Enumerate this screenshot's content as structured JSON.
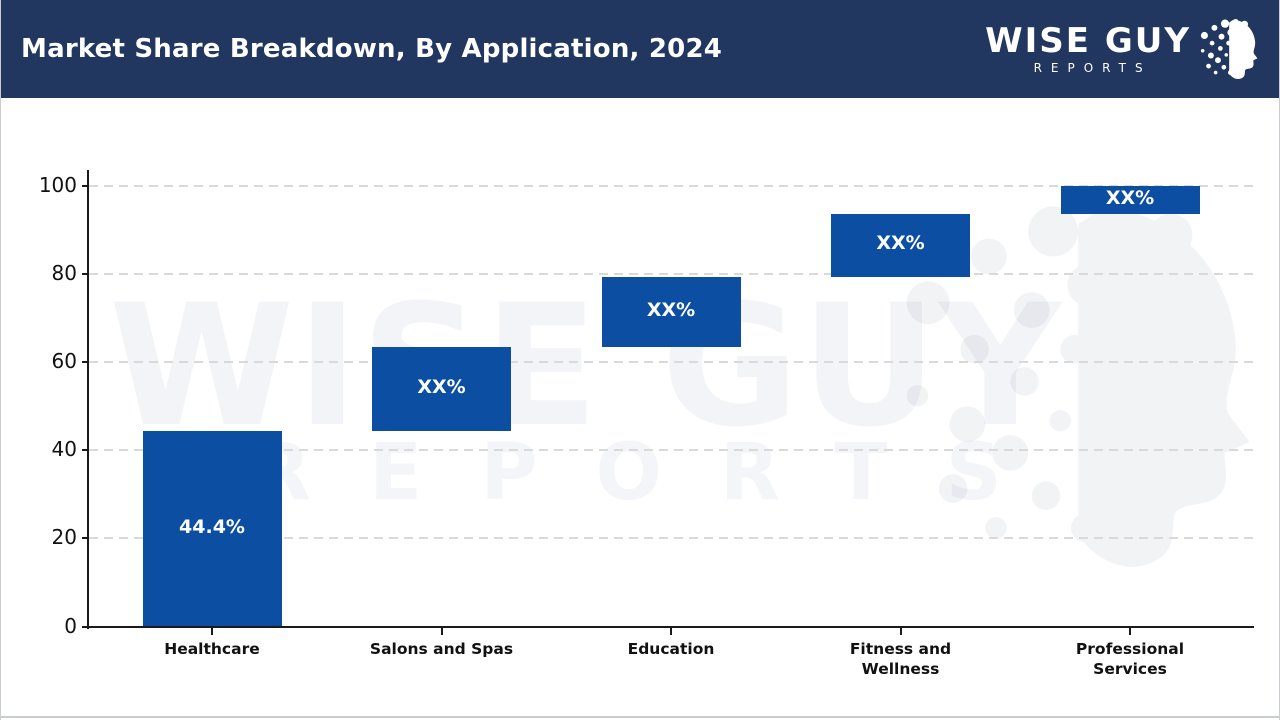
{
  "header": {
    "title": "Market Share Breakdown, By Application, 2024",
    "logo": {
      "line1": "WISE GUY",
      "line2": "REPORTS",
      "face_icon": "dotted-head-profile"
    }
  },
  "watermark": {
    "line1": "WISE GUY",
    "line2": "REPORTS",
    "face_icon": "dotted-head-profile"
  },
  "colors": {
    "header_bg": "#21375f",
    "bar": "#0b4ea2",
    "bar_label": "#ffffff",
    "grid": "#d9d9d9",
    "axis": "#1a1a1a",
    "tick_label": "#111111"
  },
  "chart_data": {
    "type": "bar",
    "subtype": "waterfall",
    "title": "Market Share Breakdown, By Application, 2024",
    "categories": [
      "Healthcare",
      "Salons and Spas",
      "Education",
      "Fitness and Wellness",
      "Professional Services"
    ],
    "series": [
      {
        "name": "Market Share",
        "segments": [
          {
            "category": "Healthcare",
            "start": 0,
            "end": 44.4,
            "label": "44.4%"
          },
          {
            "category": "Salons and Spas",
            "start": 44.4,
            "end": 63.5,
            "label": "XX%"
          },
          {
            "category": "Education",
            "start": 63.5,
            "end": 79.4,
            "label": "XX%"
          },
          {
            "category": "Fitness and Wellness",
            "start": 79.4,
            "end": 93.7,
            "label": "XX%"
          },
          {
            "category": "Professional Services",
            "start": 93.7,
            "end": 100,
            "label": "XX%"
          }
        ]
      }
    ],
    "xlabel": "",
    "ylabel": "",
    "ylim": [
      0,
      100
    ],
    "yticks": [
      0,
      20,
      40,
      60,
      80,
      100
    ],
    "grid": "horizontal-dashed",
    "legend": "none"
  }
}
